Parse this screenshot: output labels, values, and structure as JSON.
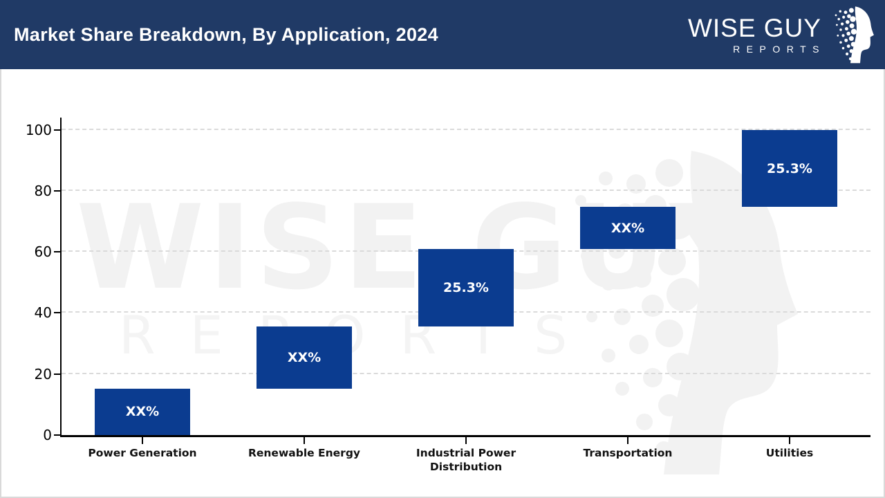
{
  "header": {
    "title": "Market Share Breakdown, By Application, 2024",
    "logo": {
      "line1": "WISE GUY",
      "line2": "REPORTS"
    }
  },
  "watermark": {
    "line1": "WISE GUY",
    "line2": "REPORTS"
  },
  "chart_data": {
    "type": "bar",
    "subtype": "waterfall",
    "title": "Market Share Breakdown, By Application, 2024",
    "categories": [
      "Power Generation",
      "Renewable Energy",
      "Industrial Power Distribution",
      "Transportation",
      "Utilities"
    ],
    "segments": [
      {
        "category": "Power Generation",
        "start": 0,
        "end": 15.2,
        "value": 15.2,
        "label": "XX%"
      },
      {
        "category": "Renewable Energy",
        "start": 15.2,
        "end": 35.6,
        "value": 20.4,
        "label": "XX%"
      },
      {
        "category": "Industrial Power Distribution",
        "start": 35.6,
        "end": 60.9,
        "value": 25.3,
        "label": "25.3%"
      },
      {
        "category": "Transportation",
        "start": 60.9,
        "end": 74.7,
        "value": 13.8,
        "label": "XX%"
      },
      {
        "category": "Utilities",
        "start": 74.7,
        "end": 100,
        "value": 25.3,
        "label": "25.3%"
      }
    ],
    "xlabel": "",
    "ylabel": "",
    "ylim": [
      0,
      104
    ],
    "yticks": [
      0,
      20,
      40,
      60,
      80,
      100
    ],
    "grid": "horizontal-dashed",
    "legend": "none",
    "bar_color": "#0b3c90",
    "bar_label_color": "#ffffff",
    "axis_color": "#000000",
    "gridline_color": "#dadada"
  }
}
